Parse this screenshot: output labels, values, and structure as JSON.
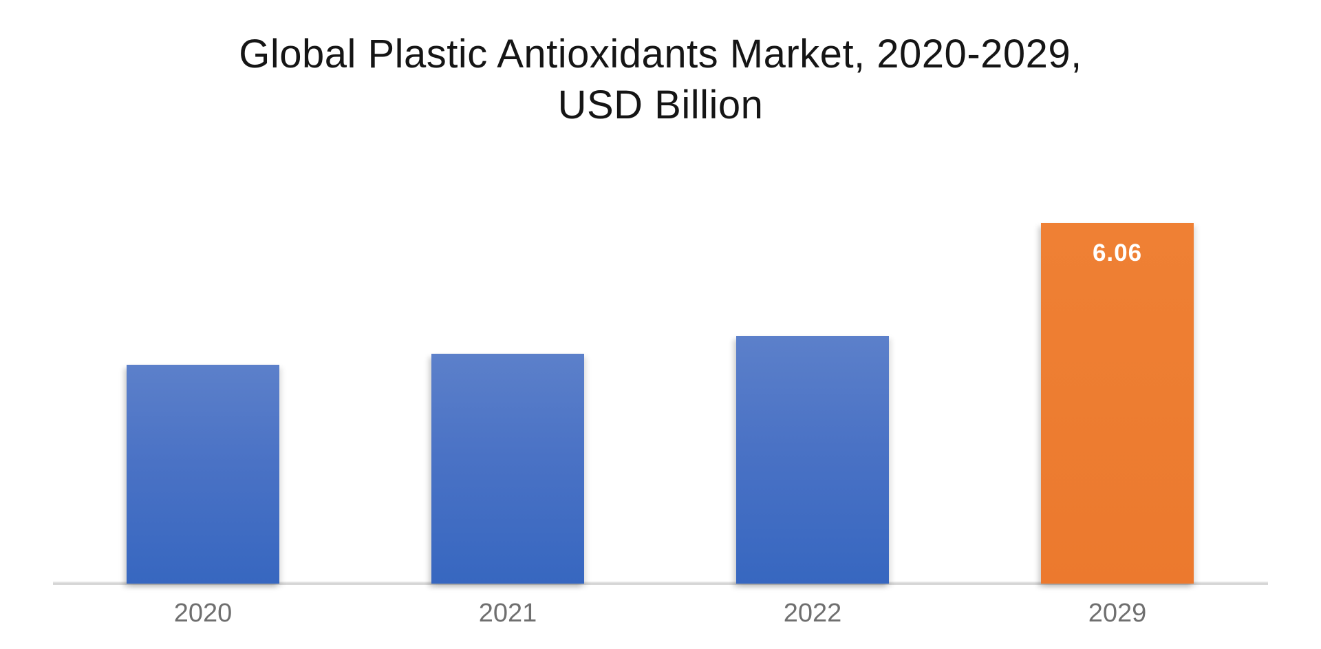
{
  "chart": {
    "title_line1": "Global Plastic Antioxidants Market, 2020-2029,",
    "title_line2": "USD Billion"
  },
  "chart_data": {
    "type": "bar",
    "title": "Global Plastic Antioxidants Market, 2020-2029, USD Billion",
    "categories": [
      "2020",
      "2021",
      "2022",
      "2029"
    ],
    "values": [
      3.68,
      3.86,
      4.16,
      6.06
    ],
    "value_labels": [
      "",
      "",
      "",
      "6.06"
    ],
    "bar_colors": [
      "#4472c4",
      "#4472c4",
      "#4472c4",
      "#ed7d31"
    ],
    "xlabel": "",
    "ylabel": "",
    "ylim": [
      0,
      6.5
    ],
    "grid": false,
    "legend": false,
    "x_axis_line_color": "#d9d9d9",
    "x_label_color": "#6f6f6f",
    "data_label_color": "#ffffff",
    "title_color": "#151515",
    "blue_bar_color": "#4472c4",
    "orange_bar_color": "#ed7d31"
  }
}
